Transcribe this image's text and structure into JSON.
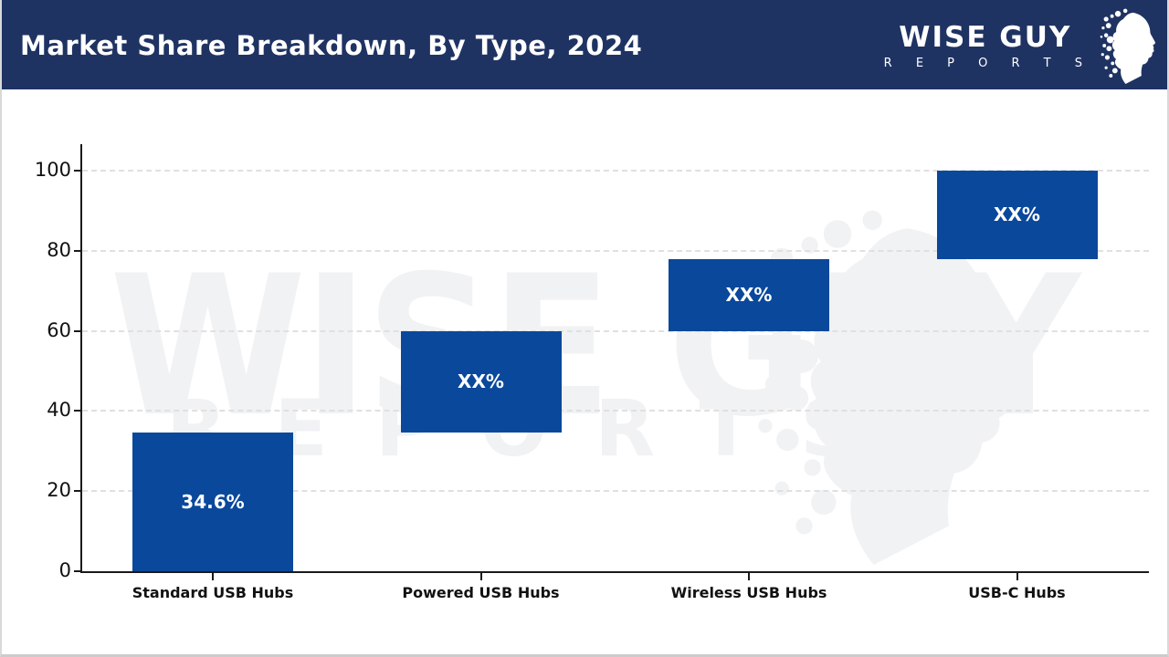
{
  "header": {
    "title": "Market Share Breakdown, By Type, 2024",
    "logo": {
      "line1": "WISE GUY",
      "line2": "R E P O R T S"
    }
  },
  "watermark": {
    "line1": "WISE GUY",
    "line2": "REPORTS"
  },
  "colors": {
    "header_bg": "#1f3363",
    "bar": "#0a489c",
    "bar_label": "#ffffff",
    "grid": "#e0e0e0",
    "axis": "#1a1a1a",
    "watermark": "#f1f2f4"
  },
  "chart_data": {
    "type": "bar",
    "subtype": "waterfall",
    "title": "Market Share Breakdown, By Type, 2024",
    "categories": [
      "Standard USB Hubs",
      "Powered USB Hubs",
      "Wireless USB Hubs",
      "USB-C Hubs"
    ],
    "segments": [
      {
        "category": "Standard USB Hubs",
        "label": "34.6%",
        "start": 0,
        "end": 34.6,
        "value": 34.6
      },
      {
        "category": "Powered USB Hubs",
        "label": "XX%",
        "start": 34.6,
        "end": 60,
        "value": 25.4
      },
      {
        "category": "Wireless USB Hubs",
        "label": "XX%",
        "start": 60,
        "end": 78,
        "value": 18
      },
      {
        "category": "USB-C Hubs",
        "label": "XX%",
        "start": 78,
        "end": 100,
        "value": 22
      }
    ],
    "yticks": [
      0,
      20,
      40,
      60,
      80,
      100
    ],
    "ylim": [
      0,
      106
    ],
    "xlabel": "",
    "ylabel": "",
    "grid": true,
    "legend": "none"
  }
}
